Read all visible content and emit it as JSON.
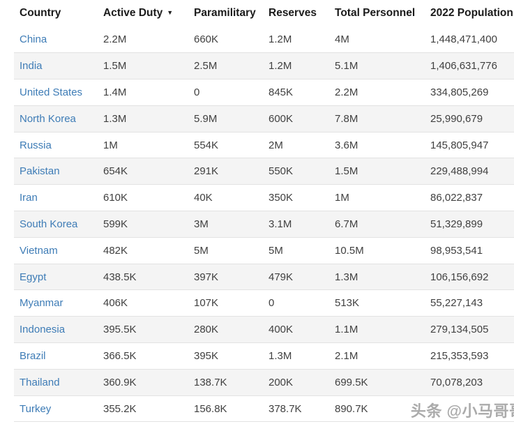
{
  "table": {
    "columns": [
      {
        "label": "Country",
        "sorted": false
      },
      {
        "label": "Active Duty",
        "sorted": true,
        "sort_direction": "desc"
      },
      {
        "label": "Paramilitary",
        "sorted": false
      },
      {
        "label": "Reserves",
        "sorted": false
      },
      {
        "label": "Total Personnel",
        "sorted": false
      },
      {
        "label": "2022 Population",
        "sorted": false
      }
    ],
    "rows": [
      {
        "country": "China",
        "active_duty": "2.2M",
        "paramilitary": "660K",
        "reserves": "1.2M",
        "total_personnel": "4M",
        "population_2022": "1,448,471,400"
      },
      {
        "country": "India",
        "active_duty": "1.5M",
        "paramilitary": "2.5M",
        "reserves": "1.2M",
        "total_personnel": "5.1M",
        "population_2022": "1,406,631,776"
      },
      {
        "country": "United States",
        "active_duty": "1.4M",
        "paramilitary": "0",
        "reserves": "845K",
        "total_personnel": "2.2M",
        "population_2022": "334,805,269"
      },
      {
        "country": "North Korea",
        "active_duty": "1.3M",
        "paramilitary": "5.9M",
        "reserves": "600K",
        "total_personnel": "7.8M",
        "population_2022": "25,990,679"
      },
      {
        "country": "Russia",
        "active_duty": "1M",
        "paramilitary": "554K",
        "reserves": "2M",
        "total_personnel": "3.6M",
        "population_2022": "145,805,947"
      },
      {
        "country": "Pakistan",
        "active_duty": "654K",
        "paramilitary": "291K",
        "reserves": "550K",
        "total_personnel": "1.5M",
        "population_2022": "229,488,994"
      },
      {
        "country": "Iran",
        "active_duty": "610K",
        "paramilitary": "40K",
        "reserves": "350K",
        "total_personnel": "1M",
        "population_2022": "86,022,837"
      },
      {
        "country": "South Korea",
        "active_duty": "599K",
        "paramilitary": "3M",
        "reserves": "3.1M",
        "total_personnel": "6.7M",
        "population_2022": "51,329,899"
      },
      {
        "country": "Vietnam",
        "active_duty": "482K",
        "paramilitary": "5M",
        "reserves": "5M",
        "total_personnel": "10.5M",
        "population_2022": "98,953,541"
      },
      {
        "country": "Egypt",
        "active_duty": "438.5K",
        "paramilitary": "397K",
        "reserves": "479K",
        "total_personnel": "1.3M",
        "population_2022": "106,156,692"
      },
      {
        "country": "Myanmar",
        "active_duty": "406K",
        "paramilitary": "107K",
        "reserves": "0",
        "total_personnel": "513K",
        "population_2022": "55,227,143"
      },
      {
        "country": "Indonesia",
        "active_duty": "395.5K",
        "paramilitary": "280K",
        "reserves": "400K",
        "total_personnel": "1.1M",
        "population_2022": "279,134,505"
      },
      {
        "country": "Brazil",
        "active_duty": "366.5K",
        "paramilitary": "395K",
        "reserves": "1.3M",
        "total_personnel": "2.1M",
        "population_2022": "215,353,593"
      },
      {
        "country": "Thailand",
        "active_duty": "360.9K",
        "paramilitary": "138.7K",
        "reserves": "200K",
        "total_personnel": "699.5K",
        "population_2022": "70,078,203"
      },
      {
        "country": "Turkey",
        "active_duty": "355.2K",
        "paramilitary": "156.8K",
        "reserves": "378.7K",
        "total_personnel": "890.7K",
        "population_2022": ""
      }
    ]
  },
  "icons": {
    "sort_desc": "▼"
  },
  "watermark": {
    "text": "头条 @小马哥哥讲知识"
  },
  "colors": {
    "link_blue": "#3e7cb6",
    "row_stripe": "#f4f4f4",
    "row_border": "#e2e2e2",
    "header_text": "#1b1b1b",
    "body_text": "#404040",
    "watermark_gray": "#ababab"
  }
}
